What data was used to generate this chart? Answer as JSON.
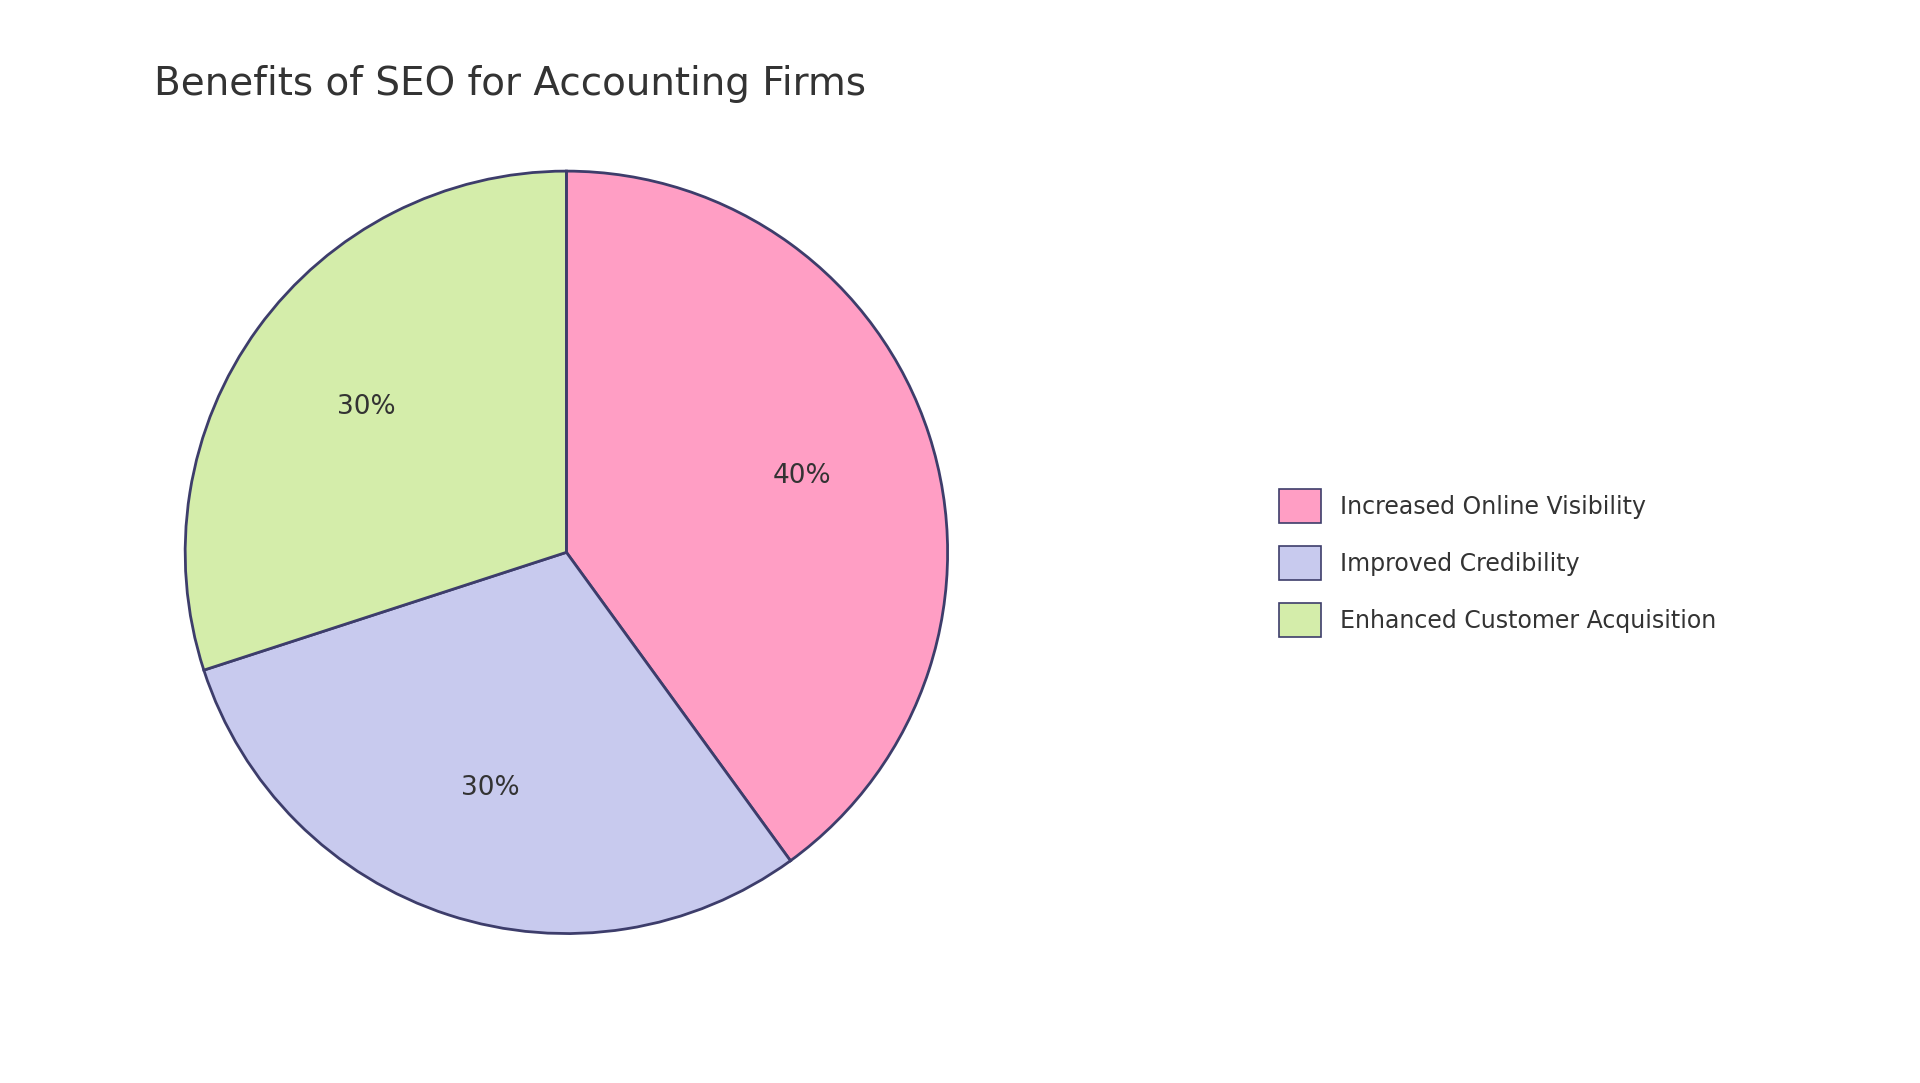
{
  "title": "Benefits of SEO for Accounting Firms",
  "labels": [
    "Increased Online Visibility",
    "Improved Credibility",
    "Enhanced Customer Acquisition"
  ],
  "values": [
    40,
    30,
    30
  ],
  "colors": [
    "#FF9EC4",
    "#C8CAEE",
    "#D4EDAA"
  ],
  "edge_color": "#3d3d6b",
  "edge_width": 2.0,
  "startangle": 90,
  "title_fontsize": 28,
  "autopct_fontsize": 19,
  "legend_fontsize": 17,
  "background_color": "#ffffff",
  "text_color": "#333333",
  "pct_distance": 0.65
}
